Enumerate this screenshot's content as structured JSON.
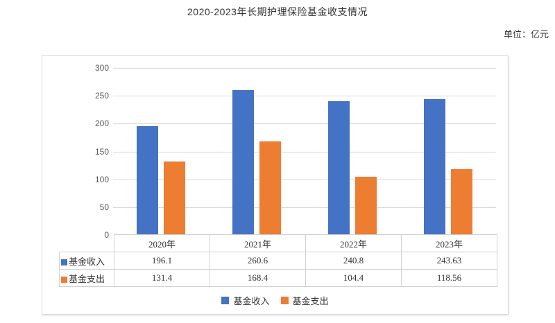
{
  "page": {
    "title": "2020-2023年长期护理保险基金收支情况",
    "unit_label": "单位：亿元"
  },
  "chart_data": {
    "type": "bar",
    "title": "2020-2023年长期护理保险基金收支情况",
    "unit": "亿元",
    "categories": [
      "2020年",
      "2021年",
      "2022年",
      "2023年"
    ],
    "series": [
      {
        "name": "基金收入",
        "color": "#4472c4",
        "values": [
          196.1,
          260.6,
          240.8,
          243.63
        ]
      },
      {
        "name": "基金支出",
        "color": "#ed7d31",
        "values": [
          131.4,
          168.4,
          104.4,
          118.56
        ]
      }
    ],
    "ylim": [
      0,
      300
    ],
    "yticks": [
      0,
      50,
      100,
      150,
      200,
      250,
      300
    ],
    "grid": true,
    "legend_position": "bottom",
    "data_table_shown": true
  },
  "colors": {
    "series_income": "#4472c4",
    "series_expense": "#ed7d31",
    "gridline": "#d9d9d9",
    "table_border": "#d0d0d0",
    "axis_text": "#595959",
    "text": "#333333"
  }
}
